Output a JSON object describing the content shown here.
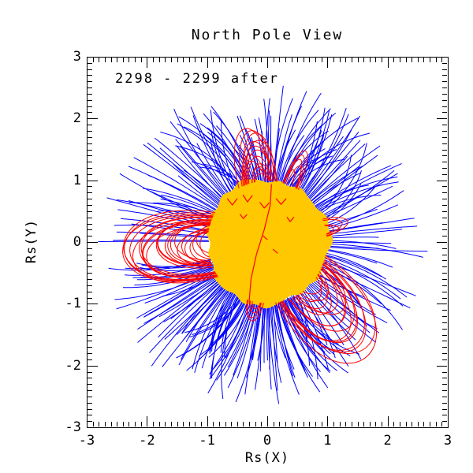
{
  "colors": {
    "background": "#FFFFFF",
    "axis": "#000000",
    "open_field": "#0000FF",
    "closed_field": "#FF0000",
    "sun": "#FFC800"
  },
  "chart_data": {
    "type": "line",
    "title": "North Pole View",
    "annotation": "2298 - 2299 after",
    "xlabel": "Rs(X)",
    "ylabel": "Rs(Y)",
    "xlim": [
      -3,
      3
    ],
    "ylim": [
      -3,
      3
    ],
    "grid": false,
    "legend": null,
    "x_ticks": [
      -3,
      -2,
      -1,
      0,
      1,
      2,
      3
    ],
    "x_tick_labels": [
      "-3",
      "-2",
      "-1",
      "0",
      "1",
      "2",
      "3"
    ],
    "y_ticks": [
      3,
      2,
      1,
      0,
      -1,
      -2,
      -3
    ],
    "y_tick_labels": [
      "3",
      "2",
      "1",
      "0",
      "-1",
      "-2",
      "-3"
    ],
    "minor_tick_interval": 0.1,
    "axis_color": "#000000",
    "seed": 20,
    "sun": {
      "center": [
        0,
        0
      ],
      "base_r": 1.02,
      "h1": 0.032,
      "h2": 0.026,
      "h3": 0.02,
      "h4": 0.014,
      "color": "#FFC800"
    },
    "open_field_lines": {
      "color": "#0000FF",
      "r_start": 0.95,
      "groups": [
        {
          "name": "north-fan",
          "a_min": 62,
          "a_max": 120,
          "count": 55,
          "r_end_min": 1.55,
          "r_end_max": 2.6,
          "spread": 1.55,
          "end_jitter_deg": 8,
          "comb_deg": null,
          "comb_strength": 0
        },
        {
          "name": "northwest-fan",
          "a_min": 120,
          "a_max": 158,
          "count": 28,
          "r_end_min": 1.8,
          "r_end_max": 2.7,
          "spread": 1.35,
          "end_jitter_deg": 8,
          "comb_deg": null,
          "comb_strength": 0
        },
        {
          "name": "west-horizontals",
          "a_min": 156,
          "a_max": 181,
          "count": 13,
          "r_end_min": 2.1,
          "r_end_max": 2.85,
          "spread": 1.15,
          "end_jitter_deg": 6,
          "comb_deg": 180,
          "comb_strength": 0.35
        },
        {
          "name": "southwest-fan",
          "a_min": 196,
          "a_max": 242,
          "count": 48,
          "r_end_min": 1.95,
          "r_end_max": 2.8,
          "spread": 1.45,
          "end_jitter_deg": 8,
          "comb_deg": null,
          "comb_strength": 0
        },
        {
          "name": "south-fan",
          "a_min": 242,
          "a_max": 296,
          "count": 62,
          "r_end_min": 1.9,
          "r_end_max": 2.65,
          "spread": 1.5,
          "end_jitter_deg": 8,
          "comb_deg": null,
          "comb_strength": 0
        },
        {
          "name": "southeast-sparse",
          "a_min": 296,
          "a_max": 330,
          "count": 20,
          "r_end_min": 1.7,
          "r_end_max": 2.5,
          "spread": 1.35,
          "end_jitter_deg": 10,
          "comb_deg": null,
          "comb_strength": 0
        },
        {
          "name": "east-fan",
          "a_min": -28,
          "a_max": 30,
          "count": 34,
          "r_end_min": 1.8,
          "r_end_max": 2.7,
          "spread": 1.6,
          "end_jitter_deg": 10,
          "comb_deg": 0,
          "comb_strength": 0.35
        },
        {
          "name": "northeast-fan",
          "a_min": 30,
          "a_max": 62,
          "count": 26,
          "r_end_min": 1.9,
          "r_end_max": 2.6,
          "spread": 1.4,
          "end_jitter_deg": 8,
          "comb_deg": null,
          "comb_strength": 0
        }
      ]
    },
    "closed_field_loops": {
      "color": "#FF0000",
      "groups": [
        {
          "name": "west-loop-nest",
          "center_deg": 181,
          "count": 24,
          "apex_r_min": 1.12,
          "apex_r_max": 2.5,
          "half_w_min_deg": 12,
          "half_w_max_deg": 31,
          "center_jitter_deg": 5,
          "tilt_deg": 3
        },
        {
          "name": "southeast-loop-nest",
          "center_deg": -44,
          "count": 17,
          "apex_r_min": 1.18,
          "apex_r_max": 2.45,
          "half_w_min_deg": 11,
          "half_w_max_deg": 34,
          "center_jitter_deg": 5,
          "tilt_deg": -4
        },
        {
          "name": "north-loop-nest",
          "center_deg": 99,
          "count": 14,
          "apex_r_min": 1.12,
          "apex_r_max": 1.85,
          "half_w_min_deg": 7,
          "half_w_max_deg": 17,
          "center_jitter_deg": 4,
          "tilt_deg": 0
        },
        {
          "name": "north-small-loops",
          "center_deg": 68,
          "count": 5,
          "apex_r_min": 1.25,
          "apex_r_max": 1.62,
          "half_w_min_deg": 4,
          "half_w_max_deg": 8,
          "center_jitter_deg": 2,
          "tilt_deg": 0
        },
        {
          "name": "east-small-loops",
          "center_deg": 12,
          "count": 4,
          "apex_r_min": 1.12,
          "apex_r_max": 1.38,
          "half_w_min_deg": 4,
          "half_w_max_deg": 8,
          "center_jitter_deg": 3,
          "tilt_deg": 0
        },
        {
          "name": "south-small-loops",
          "center_deg": 258,
          "count": 4,
          "apex_r_min": 1.1,
          "apex_r_max": 1.32,
          "half_w_min_deg": 4,
          "half_w_max_deg": 8,
          "center_jitter_deg": 3,
          "tilt_deg": 0
        }
      ]
    },
    "surface_marks": {
      "color": "#FF0000",
      "polylines_rs": [
        [
          [
            0.07,
            0.93
          ],
          [
            0.05,
            0.6
          ],
          [
            -0.05,
            0.2
          ],
          [
            -0.18,
            -0.2
          ],
          [
            -0.27,
            -0.6
          ],
          [
            -0.3,
            -0.95
          ],
          [
            -0.28,
            -1.12
          ]
        ],
        [
          [
            -0.66,
            0.7
          ],
          [
            -0.58,
            0.6
          ],
          [
            -0.5,
            0.7
          ]
        ],
        [
          [
            -0.4,
            0.76
          ],
          [
            -0.33,
            0.65
          ],
          [
            -0.25,
            0.75
          ]
        ],
        [
          [
            -0.12,
            0.64
          ],
          [
            -0.05,
            0.55
          ],
          [
            0.03,
            0.63
          ]
        ],
        [
          [
            0.15,
            0.7
          ],
          [
            0.23,
            0.61
          ],
          [
            0.31,
            0.7
          ]
        ],
        [
          [
            -0.45,
            0.45
          ],
          [
            -0.4,
            0.38
          ],
          [
            -0.34,
            0.44
          ]
        ],
        [
          [
            0.33,
            0.4
          ],
          [
            0.38,
            0.33
          ],
          [
            0.44,
            0.4
          ]
        ],
        [
          [
            -0.07,
            0.1
          ],
          [
            0.0,
            0.04
          ]
        ],
        [
          [
            0.1,
            -0.12
          ],
          [
            0.17,
            -0.18
          ]
        ]
      ]
    }
  }
}
